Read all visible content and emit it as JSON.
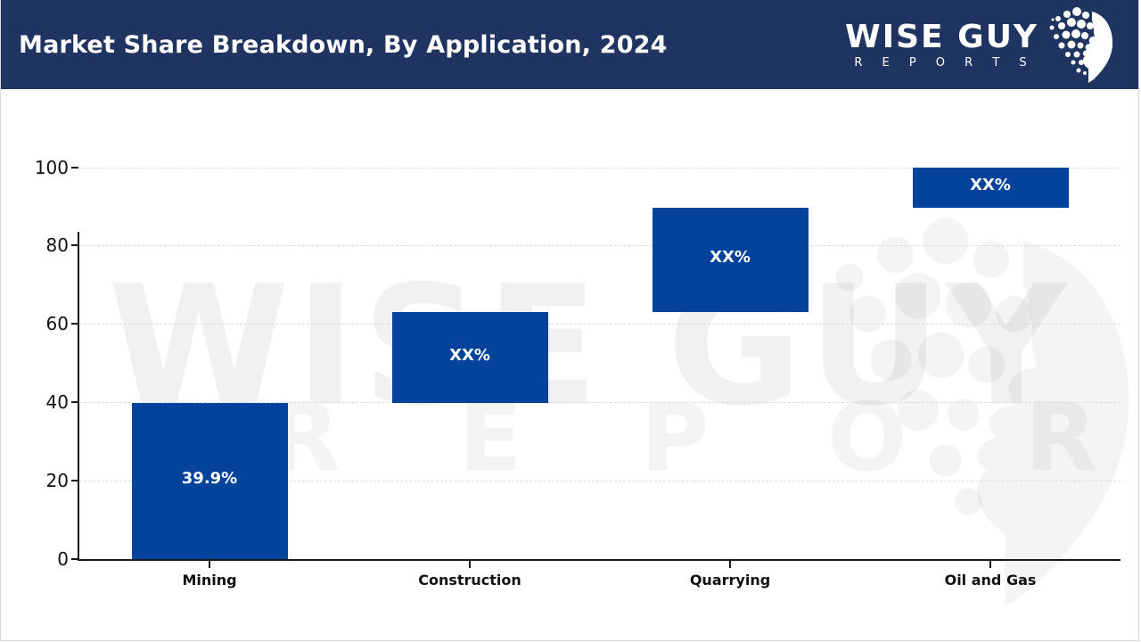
{
  "header": {
    "title": "Market Share Breakdown, By Application, 2024",
    "bg_color": "#1f3461",
    "logo": {
      "line1": "WISE GUY",
      "line2": "R E P O R T S"
    }
  },
  "watermark": {
    "line1": "WISE GUY",
    "line2": "R E P O R T S"
  },
  "chart_data": {
    "type": "bar",
    "subtype": "waterfall",
    "title": "Market Share Breakdown, By Application, 2024",
    "categories": [
      "Mining",
      "Construction",
      "Quarrying",
      "Oil and Gas"
    ],
    "segments": [
      {
        "category": "Mining",
        "label": "39.9%",
        "start": 0,
        "end": 39.9
      },
      {
        "category": "Construction",
        "label": "XX%",
        "start": 39.9,
        "end": 63.1
      },
      {
        "category": "Quarrying",
        "label": "XX%",
        "start": 63.1,
        "end": 89.7
      },
      {
        "category": "Oil and Gas",
        "label": "XX%",
        "start": 89.7,
        "end": 100
      }
    ],
    "yticks": [
      0,
      20,
      40,
      60,
      80,
      100
    ],
    "ylim": [
      0,
      106
    ],
    "xlabel": "",
    "ylabel": "",
    "bar_color": "#04439c",
    "bar_label_color": "#ffffff",
    "grid": "horizontal-dashed",
    "gridline_color": "#d9d9d9",
    "legend": "none"
  }
}
